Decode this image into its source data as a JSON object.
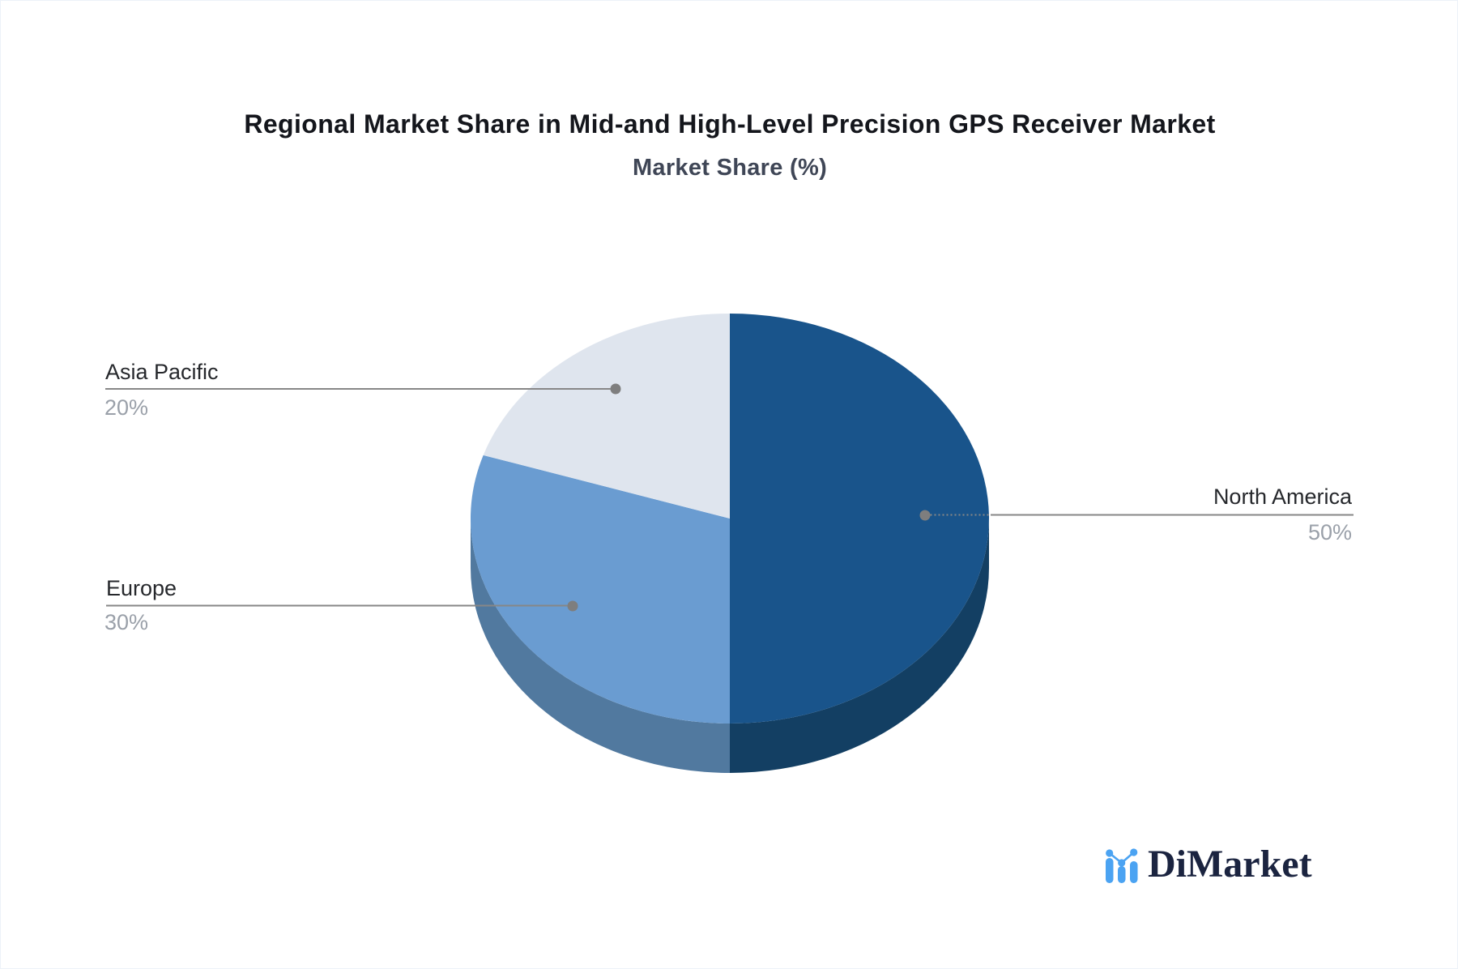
{
  "header": {
    "title": "Regional Market Share in Mid-and High-Level Precision GPS Receiver Market",
    "subtitle": "Market Share (%)"
  },
  "chart_data": {
    "type": "pie",
    "style": "3d",
    "title": "Regional Market Share in Mid-and High-Level Precision GPS Receiver Market",
    "subtitle": "Market Share (%)",
    "unit": "%",
    "direction": "clockwise",
    "start_angle": 0,
    "legend_position": "none",
    "slices": [
      {
        "label": "North America",
        "value": 50,
        "display": "50%",
        "color_top": "#19548B",
        "color_side": "#133F63",
        "callout_side": "right"
      },
      {
        "label": "Europe",
        "value": 30,
        "display": "30%",
        "color_top": "#6A9CD1",
        "color_side": "#51799F",
        "callout_side": "left"
      },
      {
        "label": "Asia Pacific",
        "value": 20,
        "display": "20%",
        "color_top": "#DFE5EE",
        "color_side": "#C9D1DE",
        "callout_side": "left"
      }
    ]
  },
  "branding": {
    "name": "DiMarket",
    "icon": "bar-line-chart-icon",
    "name_color": "#1B2440",
    "icon_color": "#4BA3F2"
  },
  "palette": {
    "title_text": "#14161C",
    "subtitle_text": "#3F4656",
    "label_text": "#26282C",
    "value_text": "#9AA0A9",
    "leader_line": "#878787",
    "leader_dot": "#7E7E7E",
    "background": "#FFFFFF"
  }
}
